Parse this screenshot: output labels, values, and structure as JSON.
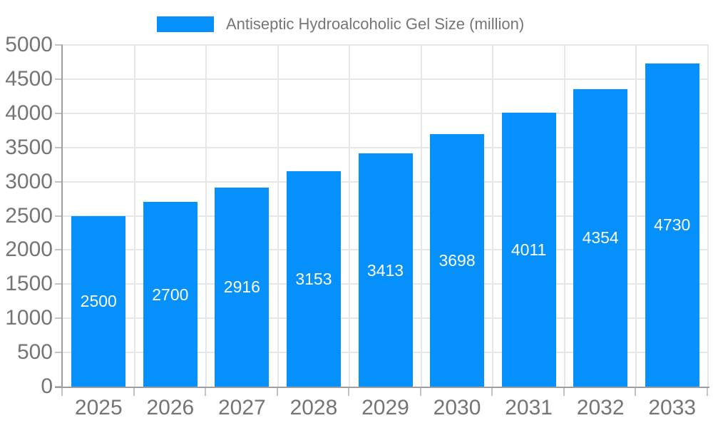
{
  "legend": {
    "label": "Antiseptic Hydroalcoholic Gel Size (million)"
  },
  "colors": {
    "bar": "#0590fc",
    "grid": "#e6e6e6",
    "axis": "#9e9e9e",
    "tick": "#c2c2c2",
    "text": "#757575",
    "value_label": "#ffffff",
    "background": "#ffffff"
  },
  "chart_data": {
    "type": "bar",
    "title": "Antiseptic Hydroalcoholic Gel Size (million)",
    "categories": [
      "2025",
      "2026",
      "2027",
      "2028",
      "2029",
      "2030",
      "2031",
      "2032",
      "2033"
    ],
    "values": [
      2500,
      2700,
      2916,
      3153,
      3413,
      3698,
      4011,
      4354,
      4730
    ],
    "series": [
      {
        "name": "Antiseptic Hydroalcoholic Gel Size (million)",
        "values": [
          2500,
          2700,
          2916,
          3153,
          3413,
          3698,
          4011,
          4354,
          4730
        ]
      }
    ],
    "xlabel": "",
    "ylabel": "",
    "ylim": [
      0,
      5000
    ],
    "ytick_step": 500,
    "yticks": [
      0,
      500,
      1000,
      1500,
      2000,
      2500,
      3000,
      3500,
      4000,
      4500,
      5000
    ],
    "grid": true,
    "value_labels": "inside-center",
    "legend_position": "top-center"
  }
}
